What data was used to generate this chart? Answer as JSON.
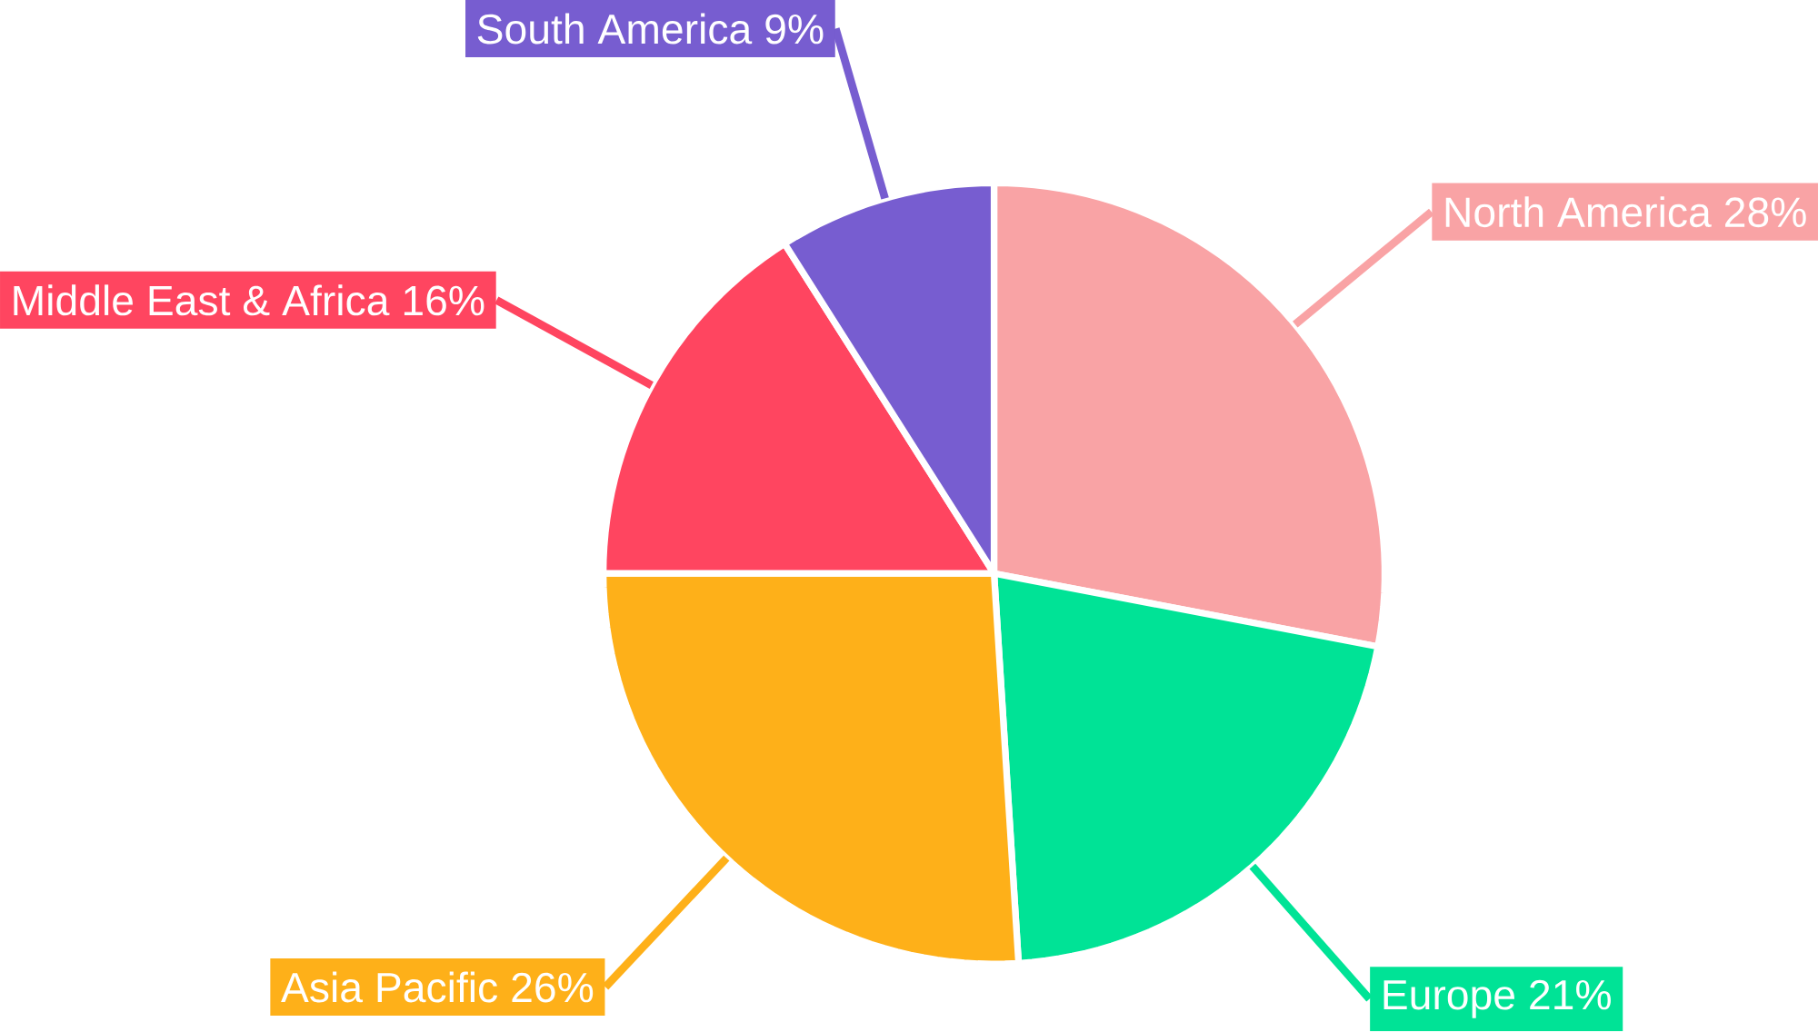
{
  "chart_data": {
    "type": "pie",
    "categories": [
      "North America",
      "Europe",
      "Asia Pacific",
      "Middle East & Africa",
      "South America"
    ],
    "values": [
      28,
      21,
      26,
      16,
      9
    ],
    "value_labels": [
      "28%",
      "21%",
      "26%",
      "16%",
      "9%"
    ],
    "colors": [
      "#f9a3a5",
      "#00e396",
      "#feb019",
      "#ff4560",
      "#775dd0"
    ]
  }
}
